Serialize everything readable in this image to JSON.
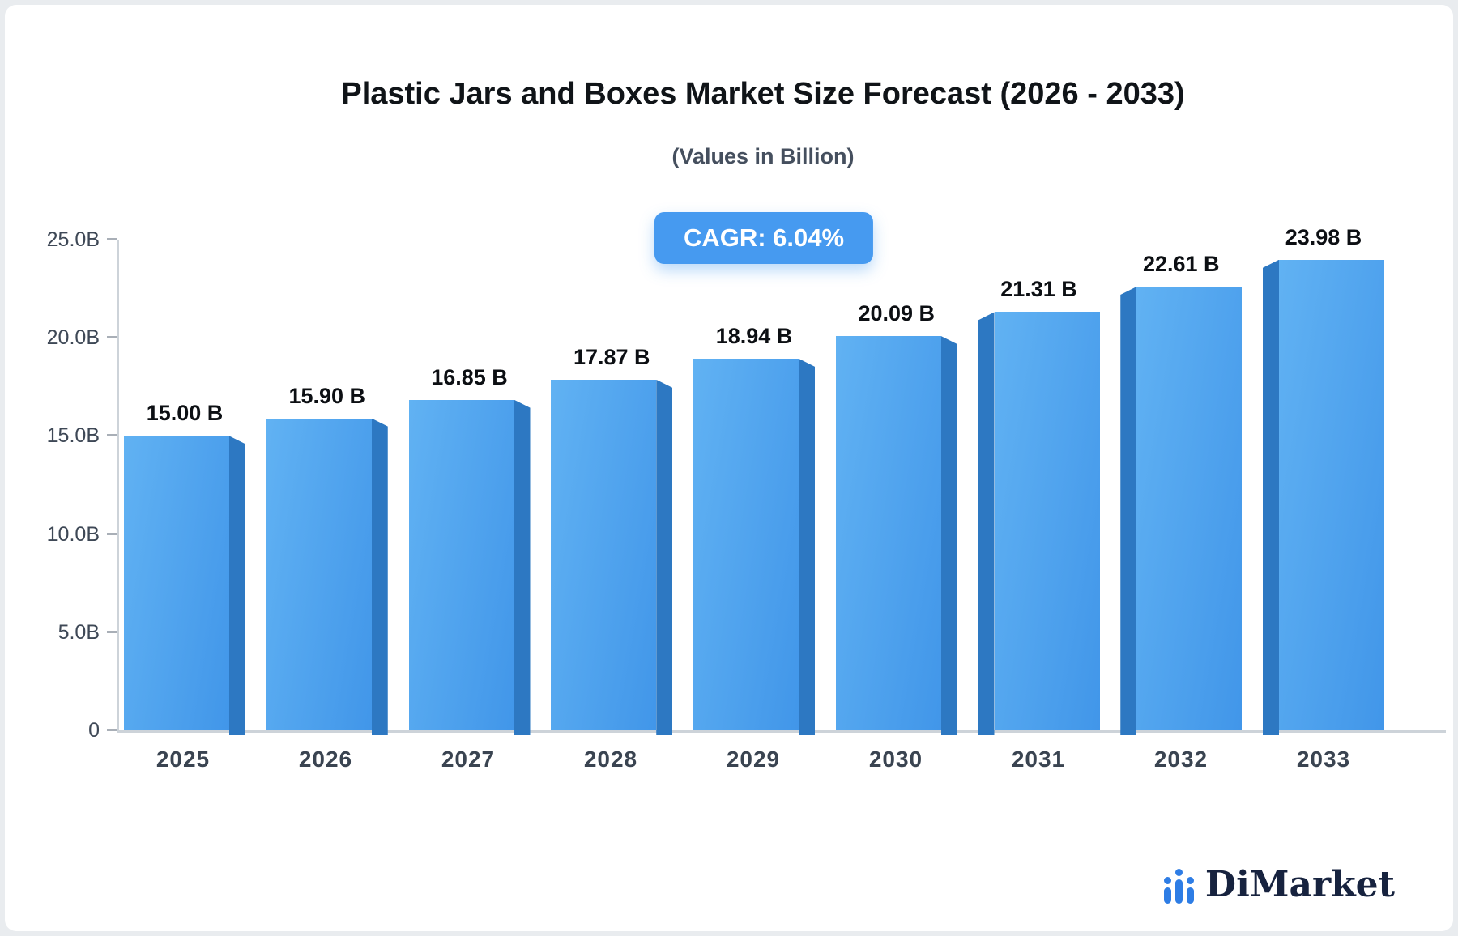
{
  "page": {
    "title": "Plastic Jars and Boxes Market Size Forecast (2026 - 2033)",
    "subtitle": "(Values in Billion)",
    "badge": "CAGR: 6.04%",
    "brand": "DiMarket"
  },
  "colors": {
    "bar_front_light": "#61b2f3",
    "bar_front_dark": "#4196e9",
    "bar_side": "#2d78c2",
    "badge_bg": "#469af0",
    "axis": "#cdd3d9",
    "brand_blue": "#2e7de5",
    "brand_navy": "#17233f"
  },
  "chart_data": {
    "type": "bar",
    "title": "Plastic Jars and Boxes Market Size Forecast (2026 - 2033)",
    "subtitle": "(Values in Billion)",
    "annotation": "CAGR: 6.04%",
    "xlabel": "",
    "ylabel": "",
    "grid": false,
    "legend": false,
    "ylim": [
      0,
      25
    ],
    "categories": [
      "2025",
      "2026",
      "2027",
      "2028",
      "2029",
      "2030",
      "2031",
      "2032",
      "2033"
    ],
    "values": [
      15.0,
      15.9,
      16.85,
      17.87,
      18.94,
      20.09,
      21.31,
      22.61,
      23.98
    ],
    "labels": [
      "15.00 B",
      "15.90 B",
      "16.85 B",
      "17.87 B",
      "18.94 B",
      "20.09 B",
      "21.31 B",
      "22.61 B",
      "23.98 B"
    ],
    "yticks": [
      {
        "value": 0,
        "label": "0"
      },
      {
        "value": 5,
        "label": "5.0B"
      },
      {
        "value": 10,
        "label": "10.0B"
      },
      {
        "value": 15,
        "label": "15.0B"
      },
      {
        "value": 20,
        "label": "20.0B"
      },
      {
        "value": 25,
        "label": "25.0B"
      }
    ]
  }
}
